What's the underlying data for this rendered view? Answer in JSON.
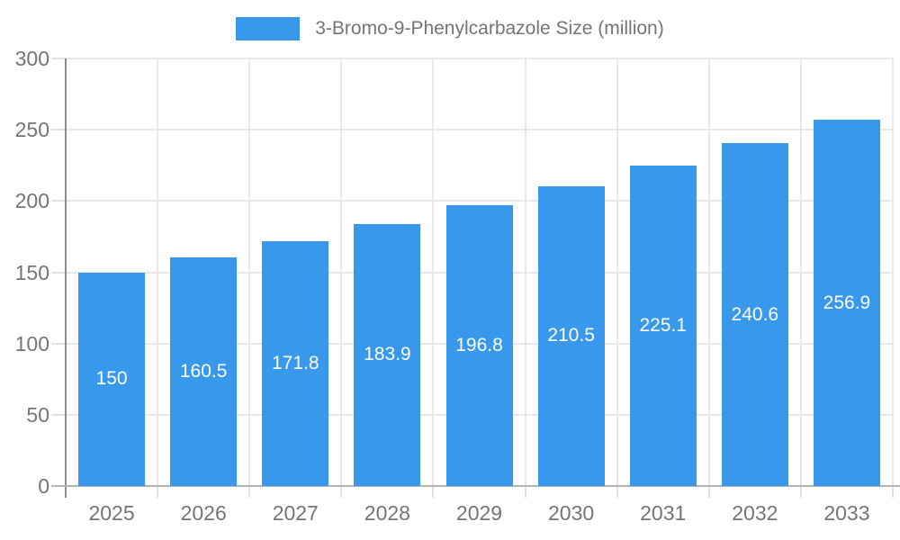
{
  "legend": {
    "label": "3-Bromo-9-Phenylcarbazole Size (million)",
    "swatch_color": "#3899ec"
  },
  "chart_data": {
    "type": "bar",
    "title": "3-Bromo-9-Phenylcarbazole Size (million)",
    "xlabel": "",
    "ylabel": "",
    "categories": [
      "2025",
      "2026",
      "2027",
      "2028",
      "2029",
      "2030",
      "2031",
      "2032",
      "2033"
    ],
    "series": [
      {
        "name": "3-Bromo-9-Phenylcarbazole Size (million)",
        "values": [
          150,
          160.5,
          171.8,
          183.9,
          196.8,
          210.5,
          225.1,
          240.6,
          256.9
        ],
        "value_labels": [
          "150",
          "160.5",
          "171.8",
          "183.9",
          "196.8",
          "210.5",
          "225.1",
          "240.6",
          "256.9"
        ]
      }
    ],
    "ylim": [
      0,
      300
    ],
    "y_ticks": [
      0,
      50,
      100,
      150,
      200,
      250,
      300
    ],
    "y_tick_labels": [
      "0",
      "50",
      "100",
      "150",
      "200",
      "250",
      "300"
    ],
    "grid": true,
    "legend_position": "top"
  },
  "colors": {
    "bar": "#3899ec",
    "bar_label": "#ffffff",
    "gridline": "#e8e8e8",
    "tick": "#e0e0e0",
    "axis_y": "#8c8c8c",
    "axis_x": "#b3b3b3",
    "tick_label": "#757575",
    "background": "#ffffff"
  }
}
